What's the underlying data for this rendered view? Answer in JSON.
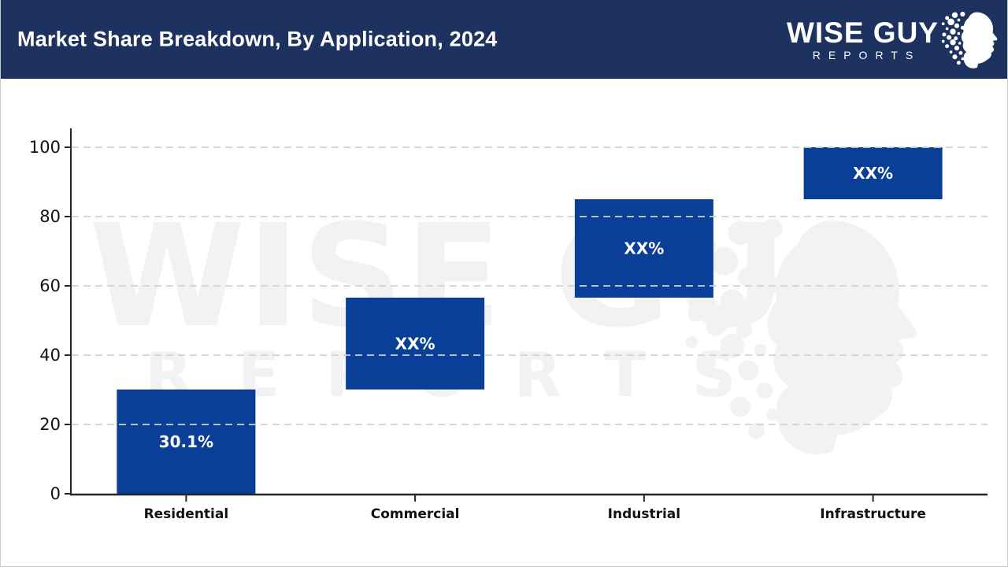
{
  "header": {
    "title": "Market Share Breakdown, By Application, 2024",
    "bg_color": "#1e325f",
    "logo": {
      "line1": "WISE GUY",
      "line2": "REPORTS"
    }
  },
  "watermark": {
    "line1": "WISE GU",
    "line2": "REPORTS"
  },
  "chart_data": {
    "type": "bar",
    "subtype": "floating-waterfall",
    "title": "Market Share Breakdown, By Application, 2024",
    "categories": [
      "Residential",
      "Commercial",
      "Industrial",
      "Infrastructure"
    ],
    "segments": [
      {
        "category": "Residential",
        "start": 0,
        "end": 30.1,
        "label": "30.1%"
      },
      {
        "category": "Commercial",
        "start": 30.1,
        "end": 56.6,
        "label": "XX%"
      },
      {
        "category": "Industrial",
        "start": 56.6,
        "end": 85.0,
        "label": "XX%"
      },
      {
        "category": "Infrastructure",
        "start": 85.0,
        "end": 100.0,
        "label": "XX%"
      }
    ],
    "yticks": [
      0,
      20,
      40,
      60,
      80,
      100
    ],
    "ylim": [
      0,
      105.5
    ],
    "xlabel": "",
    "ylabel": "",
    "grid": "horizontal-dashed",
    "legend": "none",
    "colors": {
      "bar": "#093f96",
      "bar_label": "#ffffff",
      "axis": "#262626",
      "gridline": "#d2d2d2",
      "tick_label": "#111111"
    }
  }
}
